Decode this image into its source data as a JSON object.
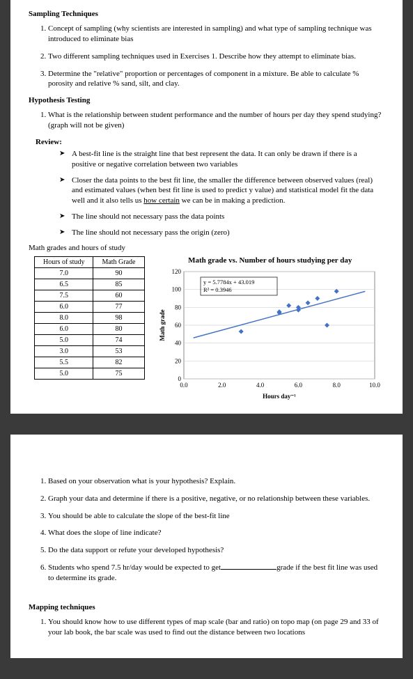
{
  "section1": {
    "title": "Sampling Techniques"
  },
  "s1_items": [
    "Concept of sampling (why scientists are interested in sampling) and what type of sampling technique was introduced to eliminate bias",
    "Two different sampling techniques used in Exercises 1. Describe how they attempt to eliminate bias.",
    "Determine the \"relative\" proportion or percentages of component in a mixture. Be able to calculate % porosity and relative % sand, silt, and clay."
  ],
  "section2": {
    "title": "Hypothesis Testing"
  },
  "s2_q": "What is the relationship between student performance and the number of hours per day they spend studying? (graph will not be given)",
  "review_label": "Review:",
  "review": [
    "A best-fit line is the straight line that best represent the data. It can only be drawn if there is a positive or negative correlation between two variables",
    "Closer the data points to the best fit line, the smaller the difference between observed values (real) and estimated values (when best fit line is used to predict y value) and statistical model fit the data well and it also tells us how certain we can be in making a prediction.",
    "The line should not necessary pass the data points",
    "The line should not necessary pass the origin (zero)"
  ],
  "table_caption": "Math grades and hours of study",
  "table": {
    "head1": "Hours of study",
    "head2": "Math Grade",
    "rows": [
      [
        "7.0",
        "90"
      ],
      [
        "6.5",
        "85"
      ],
      [
        "7.5",
        "60"
      ],
      [
        "6.0",
        "77"
      ],
      [
        "8.0",
        "98"
      ],
      [
        "6.0",
        "80"
      ],
      [
        "5.0",
        "74"
      ],
      [
        "3.0",
        "53"
      ],
      [
        "5.5",
        "82"
      ],
      [
        "5.0",
        "75"
      ]
    ]
  },
  "chart": {
    "title": "Math grade vs. Number of hours studying per day",
    "ylabel": "Math grade",
    "xlabel": "Hours day⁻¹",
    "eq": "y = 5.7784x + 43.019",
    "r2": "R² = 0.3946",
    "xlim": [
      0,
      10
    ],
    "ylim": [
      0,
      120
    ],
    "xticks": [
      "0.0",
      "2.0",
      "4.0",
      "6.0",
      "8.0",
      "10.0"
    ],
    "yticks": [
      "0",
      "20",
      "40",
      "60",
      "80",
      "100",
      "120"
    ],
    "points": [
      [
        7.0,
        90
      ],
      [
        6.5,
        85
      ],
      [
        7.5,
        60
      ],
      [
        6.0,
        77
      ],
      [
        8.0,
        98
      ],
      [
        6.0,
        80
      ],
      [
        5.0,
        74
      ],
      [
        3.0,
        53
      ],
      [
        5.5,
        82
      ],
      [
        5.0,
        75
      ]
    ],
    "line": {
      "x1": 0.5,
      "y1": 45.9,
      "x2": 9.5,
      "y2": 97.9
    },
    "marker_color": "#4472c4",
    "line_color": "#4472c4",
    "grid_color": "#d0d0d0",
    "axis_color": "#888",
    "text_color": "#000",
    "bg": "#ffffff",
    "marker_size": 3.5
  },
  "p2_items": [
    "Based on your observation what is your hypothesis? Explain.",
    "Graph your data and determine if there is a positive, negative, or no relationship between these variables.",
    "You should be able to calculate the slope of the best-fit line",
    "What does the slope of line indicate?",
    "Do the data support or refute your developed hypothesis?"
  ],
  "p2_item6_a": "Students who spend 7.5 hr/day would be expected to get",
  "p2_item6_b": "grade if the best fit line was used to determine its grade.",
  "section3": {
    "title": "Mapping techniques"
  },
  "s3_item": "You should know how to use different types of map scale (bar and ratio) on topo map (on page 29 and 33 of your lab book, the bar scale was used to find out the distance between two locations"
}
